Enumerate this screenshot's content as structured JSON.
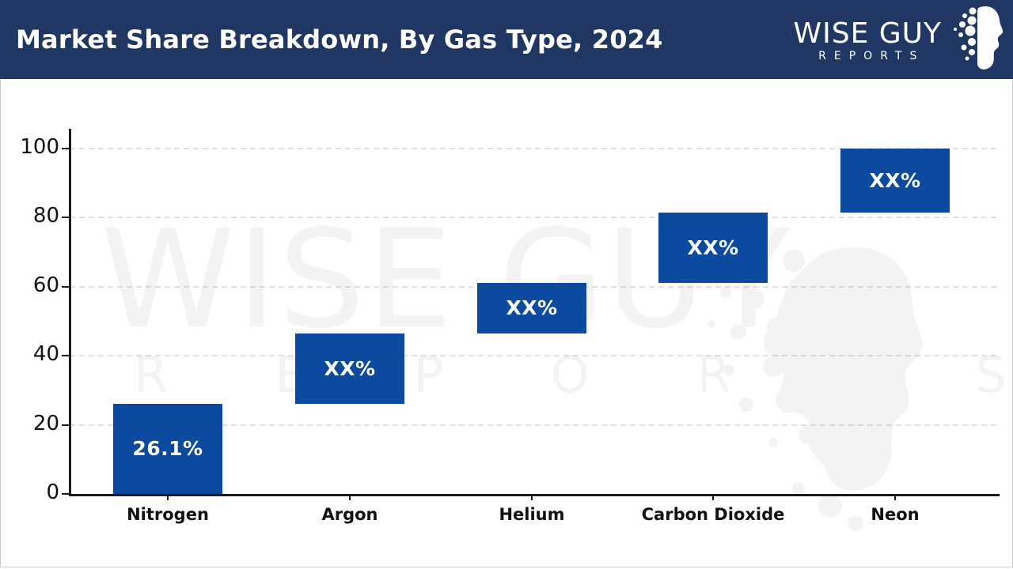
{
  "header": {
    "title": "Market Share Breakdown, By Gas Type, 2024",
    "bg_color": "#213763",
    "logo": {
      "line1": "WISE GUY",
      "line2": "REPORTS"
    }
  },
  "watermark": {
    "line1": "WISE GUY",
    "line2": "REPORTS"
  },
  "chart_data": {
    "type": "bar",
    "subtype": "waterfall",
    "title": "Market Share Breakdown, By Gas Type, 2024",
    "xlabel": "",
    "ylabel": "",
    "categories": [
      "Nitrogen",
      "Argon",
      "Helium",
      "Carbon Dioxide",
      "Neon"
    ],
    "segments": [
      {
        "category": "Nitrogen",
        "start": 0,
        "end": 26.1,
        "value": 26.1,
        "label": "26.1%"
      },
      {
        "category": "Argon",
        "start": 26.1,
        "end": 46.5,
        "value": 20.4,
        "label": "XX%"
      },
      {
        "category": "Helium",
        "start": 46.5,
        "end": 61.0,
        "value": 14.5,
        "label": "XX%"
      },
      {
        "category": "Carbon Dioxide",
        "start": 61.0,
        "end": 81.3,
        "value": 20.3,
        "label": "XX%"
      },
      {
        "category": "Neon",
        "start": 81.3,
        "end": 100.0,
        "value": 18.7,
        "label": "XX%"
      }
    ],
    "yticks": [
      0,
      20,
      40,
      60,
      80,
      100
    ],
    "ylim": [
      0,
      105
    ],
    "grid": "horizontal-dashed",
    "legend": "none",
    "bar_color": "#0b4a9e",
    "label_color": "#ffffff",
    "axis_color": "#1a1a1a",
    "gridline_color": "#dddddd"
  }
}
